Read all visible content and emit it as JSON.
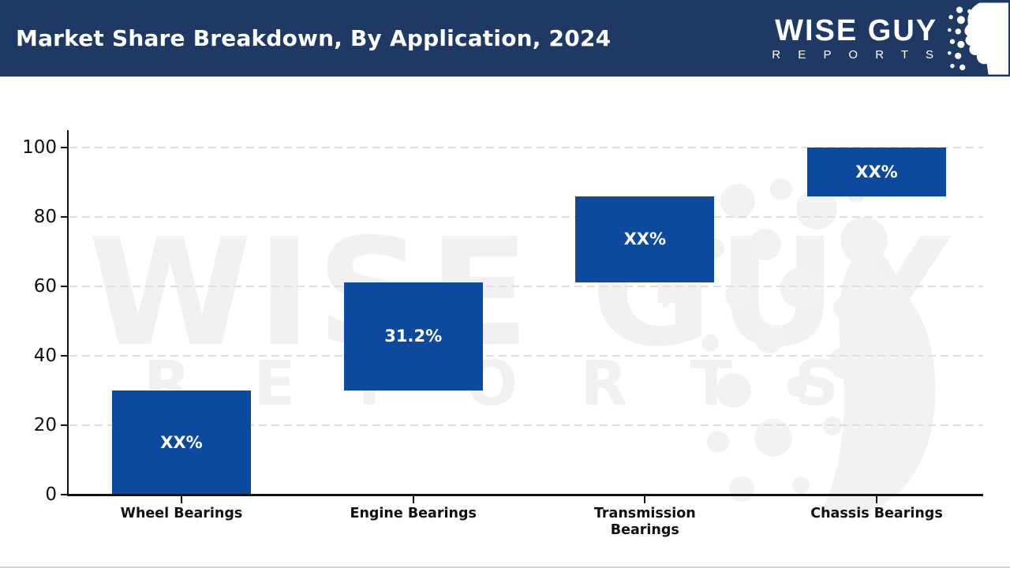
{
  "header": {
    "title": "Market Share Breakdown, By Application, 2024",
    "bg_color": "#1f3864",
    "logo": {
      "line1": "WISE GUY",
      "line2": "R E P O R T S"
    }
  },
  "watermark": {
    "line1": "WISE GUY",
    "line2": "R E P O R T S"
  },
  "chart_data": {
    "type": "bar",
    "subtype": "waterfall",
    "title": "Market Share Breakdown, By Application, 2024",
    "xlabel": "",
    "ylabel": "",
    "categories": [
      "Wheel Bearings",
      "Engine Bearings",
      "Transmission Bearings",
      "Chassis Bearings"
    ],
    "values": [
      30,
      31.2,
      24.6,
      14.2
    ],
    "cumulative": [
      30,
      61.2,
      85.8,
      100
    ],
    "bar_labels": [
      "XX%",
      "31.2%",
      "XX%",
      "XX%"
    ],
    "yticks": [
      0,
      20,
      40,
      60,
      80,
      100
    ],
    "ylim": [
      0,
      105
    ],
    "grid": "horizontal dashed",
    "legend": "none",
    "bar_color": "#0d4a9e",
    "bar_label_color": "#ffffff",
    "axis_color": "#111111",
    "gridline_color": "#dedede"
  }
}
